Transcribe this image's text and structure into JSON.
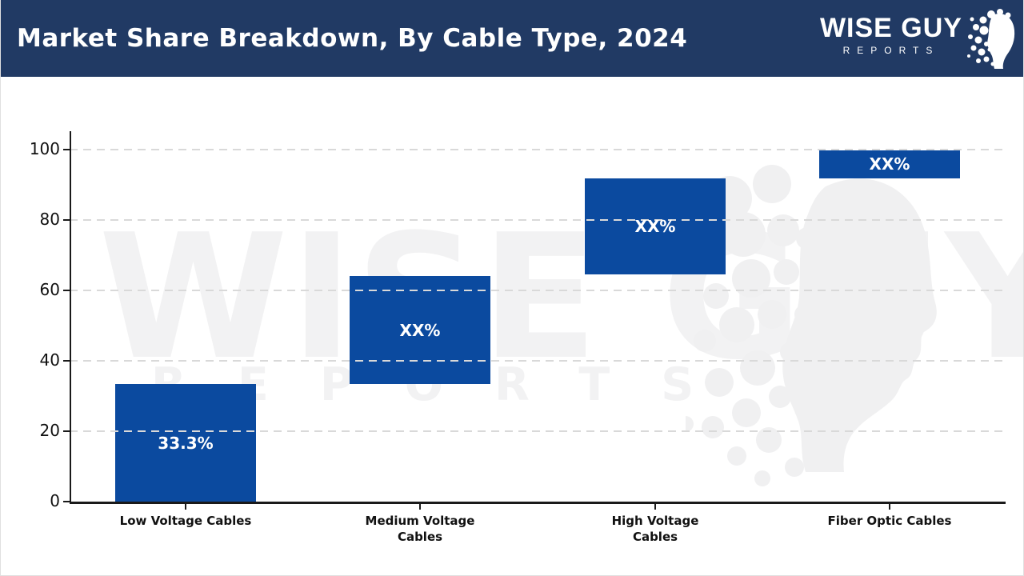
{
  "header": {
    "title": "Market Share Breakdown, By Cable Type, 2024",
    "logo": {
      "word": "WISE GUY",
      "sub": "REPORTS",
      "face_icon": "dotted-head-profile"
    }
  },
  "watermark": {
    "word": "WISE GUY",
    "sub": "REPORTS",
    "face_icon": "dotted-head-profile"
  },
  "chart_data": {
    "type": "bar",
    "subtype": "waterfall",
    "title": "Market Share Breakdown, By Cable Type, 2024",
    "categories": [
      "Low Voltage Cables",
      "Medium Voltage Cables",
      "High Voltage Cables",
      "Fiber Optic Cables"
    ],
    "tick_labels": [
      "Low Voltage Cables",
      "Medium Voltage\nCables",
      "High Voltage\nCables",
      "Fiber Optic Cables"
    ],
    "segments": [
      {
        "category": "Low Voltage Cables",
        "start": 0,
        "end": 33.3,
        "label": "33.3%"
      },
      {
        "category": "Medium Voltage Cables",
        "start": 33.3,
        "end": 64.1,
        "label": "XX%"
      },
      {
        "category": "High Voltage Cables",
        "start": 64.5,
        "end": 91.8,
        "label": "XX%"
      },
      {
        "category": "Fiber Optic Cables",
        "start": 91.9,
        "end": 99.8,
        "label": "XX%"
      }
    ],
    "ylim": [
      0,
      100
    ],
    "yticks": [
      "0",
      "20",
      "40",
      "60",
      "80",
      "100"
    ],
    "grid": "horizontal-dashed",
    "legend": "none",
    "bar_color": "#0b4a9f",
    "bar_label_color": "#ffffff"
  },
  "colors": {
    "header_bg": "#213a64",
    "bar": "#0b4a9f",
    "grid": "#d9d9d9",
    "axis": "#1a1a1a",
    "watermark": "#f2f2f3"
  }
}
